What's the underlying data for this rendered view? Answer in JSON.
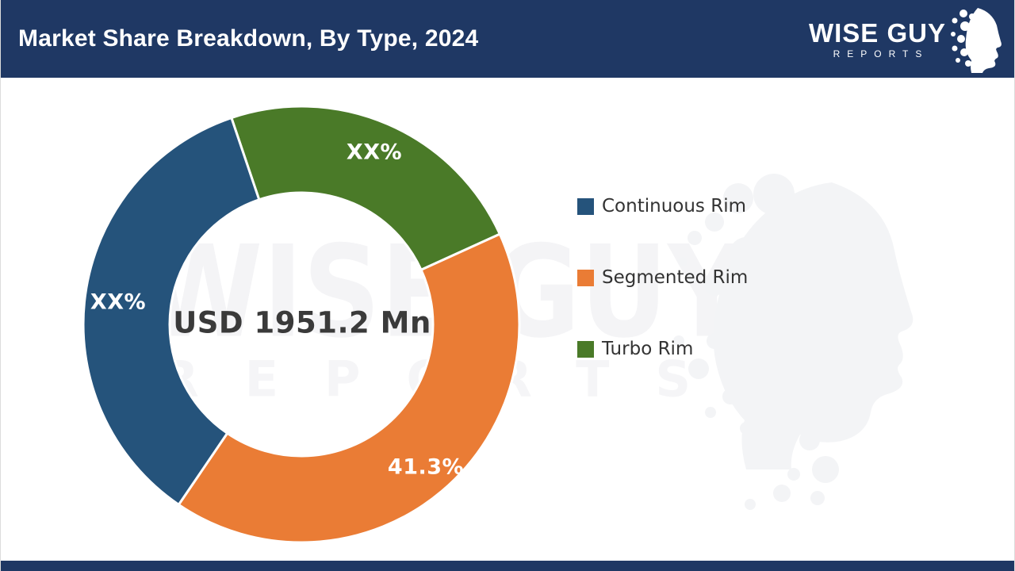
{
  "header": {
    "title": "Market Share Breakdown, By Type, 2024",
    "logo": {
      "name": "WISE GUY",
      "sub": "REPORTS"
    }
  },
  "chart_data": {
    "type": "donut",
    "title": "Market Share Breakdown, By Type, 2024",
    "center_label": "USD 1951.2 Mn",
    "total_value": "USD 1951.2 Mn",
    "legend_position": "right",
    "direction": "clockwise",
    "start_angle_deg_from_north": -18.7,
    "slices": [
      {
        "name": "Turbo Rim",
        "label": "XX%",
        "pct": 23.4,
        "pct_is_estimated": true,
        "color": "#4A7A28"
      },
      {
        "name": "Segmented Rim",
        "label": "41.3%",
        "pct": 41.3,
        "pct_is_estimated": false,
        "color": "#EA7C35"
      },
      {
        "name": "Continuous Rim",
        "label": "XX%",
        "pct": 35.3,
        "pct_is_estimated": true,
        "color": "#25537B"
      }
    ]
  },
  "legend": {
    "items": [
      {
        "label": "Continuous Rim",
        "color": "#25537B"
      },
      {
        "label": "Segmented Rim",
        "color": "#EA7C35"
      },
      {
        "label": "Turbo Rim",
        "color": "#4A7A28"
      }
    ]
  },
  "watermark": {
    "line1": "WISE GUY",
    "line2": "REPORTS"
  },
  "icons": {
    "logo_face": "dotted-head-profile",
    "watermark_face": "dotted-head-profile"
  },
  "colors": {
    "header_bg": "#1F3864",
    "footer_bg": "#1F3864",
    "slice_blue": "#25537B",
    "slice_orange": "#EA7C35",
    "slice_green": "#4A7A28",
    "center_text": "#3A3A3A",
    "legend_text": "#333333",
    "watermark": "#F4F4F6"
  }
}
